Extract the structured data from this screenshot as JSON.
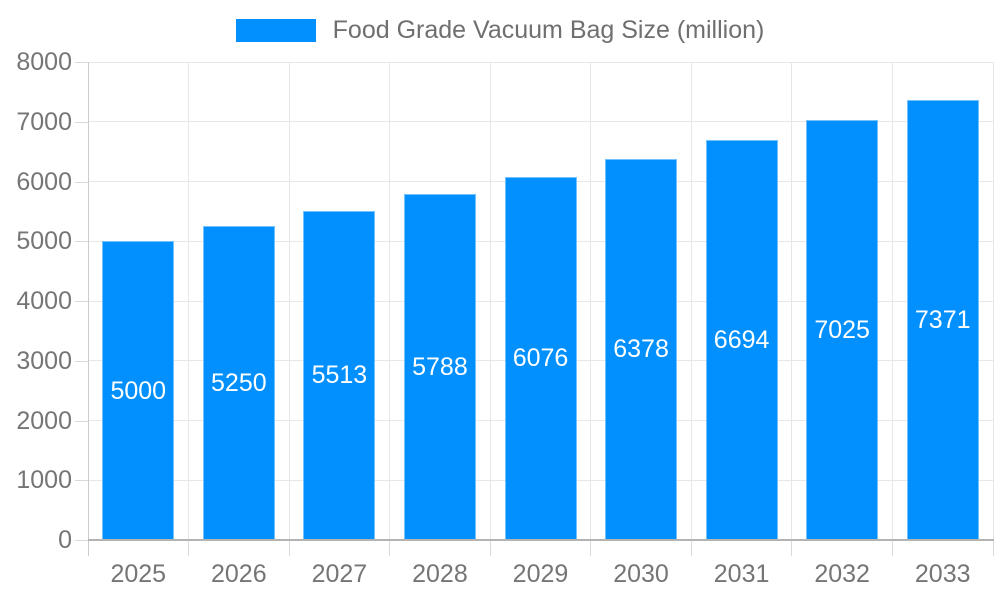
{
  "chart_data": {
    "type": "bar",
    "title": "Food Grade Vacuum Bag Size (million)",
    "categories": [
      "2025",
      "2026",
      "2027",
      "2028",
      "2029",
      "2030",
      "2031",
      "2032",
      "2033"
    ],
    "series": [
      {
        "name": "Food Grade Vacuum Bag Size (million)",
        "values": [
          5000,
          5250,
          5513,
          5788,
          6076,
          6378,
          6694,
          7025,
          7371
        ]
      }
    ],
    "xlabel": "",
    "ylabel": "",
    "ylim": [
      0,
      8000
    ],
    "ytick_step": 1000,
    "yticks": [
      0,
      1000,
      2000,
      3000,
      4000,
      5000,
      6000,
      7000,
      8000
    ],
    "grid": true,
    "legend_position": "top-center",
    "value_label_position": "inside-center"
  },
  "colors": {
    "bar": "#0190fe",
    "bar_border": "rgba(255,255,255,0.45)",
    "value_label": "#ffffff",
    "axis_text": "#757575",
    "legend_text": "#6f6f6f",
    "grid_line": "#e7e7e7",
    "axis_line": "#b3b3b3",
    "y_axis_line": "#cccccc",
    "tick": "#d9d9d9"
  }
}
